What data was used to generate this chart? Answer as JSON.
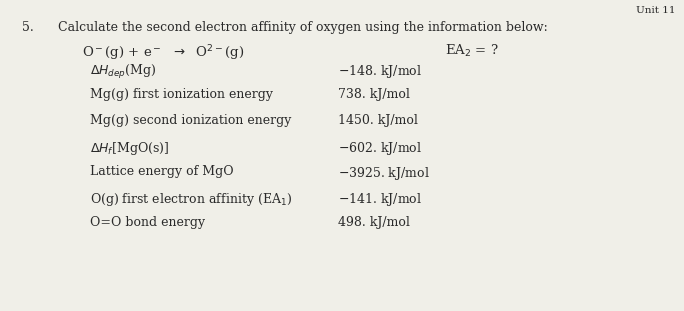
{
  "unit_label": "Unit 11",
  "question_number": "5.",
  "question_text": "Calculate the second electron affinity of oxygen using the information below:",
  "bg_color": "#f0efe8",
  "text_color": "#2a2a2a",
  "font_size_unit": 7.5,
  "font_size_question": 9.0,
  "font_size_reaction": 9.5,
  "font_size_table": 9.0,
  "rows": [
    {
      "label": "ΔH_dep(Mg)",
      "label_math": true,
      "value": "−148. kJ/mol"
    },
    {
      "label": "Mg(g) first ionization energy",
      "label_math": false,
      "value": "738. kJ/mol"
    },
    {
      "label": "Mg(g) second ionization energy",
      "label_math": false,
      "value": "1450. kJ/mol"
    },
    {
      "label": "ΔH_f[MgO(s)]",
      "label_math": true,
      "value": "−602. kJ/mol"
    },
    {
      "label": "Lattice energy of MgO",
      "label_math": false,
      "value": "−3925. kJ/mol"
    },
    {
      "label": "O(g) first electron affinity (EA_1)",
      "label_math": true,
      "value": "−141. kJ/mol"
    },
    {
      "label": "O=O bond energy",
      "label_math": false,
      "value": "498. kJ/mol"
    }
  ]
}
